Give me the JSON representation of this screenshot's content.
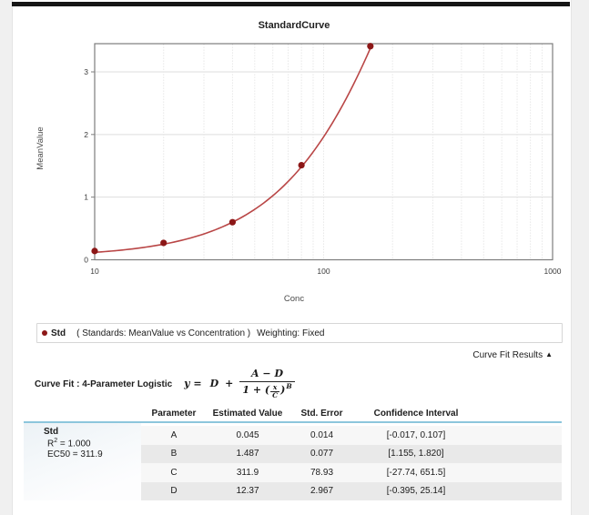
{
  "chart": {
    "title": "StandardCurve",
    "xlabel": "Conc",
    "ylabel": "MeanValue"
  },
  "chart_data": {
    "type": "scatter",
    "title": "StandardCurve",
    "xlabel": "Conc",
    "ylabel": "MeanValue",
    "x_scale": "log",
    "xlim": [
      10,
      1000
    ],
    "ylim": [
      0,
      3.45
    ],
    "x_ticks": [
      10,
      100,
      1000
    ],
    "y_ticks": [
      0,
      1,
      2,
      3
    ],
    "grid": true,
    "legend_position": "below",
    "series": [
      {
        "name": "Std",
        "marker_color": "#8c1717",
        "x": [
          10,
          20,
          40,
          80,
          160
        ],
        "y": [
          0.14,
          0.27,
          0.6,
          1.51,
          3.41
        ]
      }
    ],
    "fit_curve": {
      "model": "4-Parameter Logistic",
      "params": {
        "A": 0.045,
        "B": 1.487,
        "C": 311.9,
        "D": 12.37
      },
      "x_range": [
        10,
        160
      ],
      "color": "#b94646"
    }
  },
  "legend": {
    "series_label": "Std",
    "description": "( Standards: MeanValue vs Concentration )",
    "weighting": "Weighting: Fixed"
  },
  "results_toggle": {
    "label": "Curve Fit Results",
    "collapse_icon": "▲"
  },
  "curve_fit": {
    "label": "Curve Fit : 4-Parameter Logistic",
    "formula": {
      "lhs": "y =",
      "term": "D",
      "operator": "+",
      "numerator": "A − D",
      "den_prefix": "1 + (",
      "den_frac_num": "x",
      "den_frac_den": "C",
      "den_suffix": ")",
      "exponent": "B"
    }
  },
  "results_table": {
    "headers": [
      "Parameter",
      "Estimated Value",
      "Std. Error",
      "Confidence Interval"
    ],
    "group": {
      "name": "Std",
      "r2_base": "R",
      "r2_sup": "2",
      "r2_value": " = 1.000",
      "ec50": "EC50 = 311.9"
    },
    "rows": [
      {
        "parameter": "A",
        "estimated_value": "0.045",
        "std_error": "0.014",
        "confidence_interval": "[-0.017, 0.107]"
      },
      {
        "parameter": "B",
        "estimated_value": "1.487",
        "std_error": "0.077",
        "confidence_interval": "[1.155, 1.820]"
      },
      {
        "parameter": "C",
        "estimated_value": "311.9",
        "std_error": "78.93",
        "confidence_interval": "[-27.74, 651.5]"
      },
      {
        "parameter": "D",
        "estimated_value": "12.37",
        "std_error": "2.967",
        "confidence_interval": "[-0.395, 25.14]"
      }
    ]
  }
}
